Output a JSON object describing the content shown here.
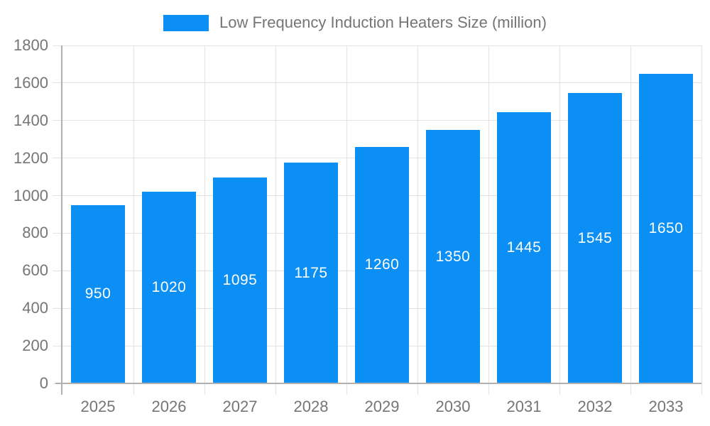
{
  "chart_data": {
    "type": "bar",
    "title": "",
    "legend": {
      "label": "Low Frequency Induction Heaters Size (million)",
      "position": "top"
    },
    "categories": [
      "2025",
      "2026",
      "2027",
      "2028",
      "2029",
      "2030",
      "2031",
      "2032",
      "2033"
    ],
    "series": [
      {
        "name": "Low Frequency Induction Heaters Size (million)",
        "values": [
          950,
          1020,
          1095,
          1175,
          1260,
          1350,
          1445,
          1545,
          1650
        ]
      }
    ],
    "xlabel": "",
    "ylabel": "",
    "ylim": [
      0,
      1800
    ],
    "y_ticks": [
      0,
      200,
      400,
      600,
      800,
      1000,
      1200,
      1400,
      1600,
      1800
    ],
    "grid": "on",
    "value_labels_position": "inside-center",
    "colors": {
      "bar": "#0b8ff5",
      "value_label": "#ffffff",
      "tick_label": "#757575",
      "legend_label": "#757575",
      "gridline": "#e3e3e3",
      "axis": "#b0b0b0",
      "background": "#ffffff"
    }
  }
}
